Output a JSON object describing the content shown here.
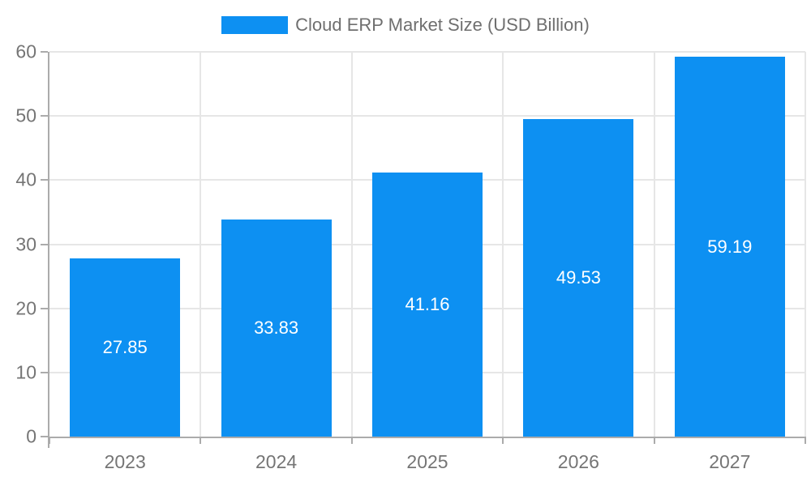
{
  "chart_data": {
    "type": "bar",
    "title": "Cloud ERP Market Size (USD Billion)",
    "categories": [
      "2023",
      "2024",
      "2025",
      "2026",
      "2027"
    ],
    "values": [
      27.85,
      33.83,
      41.16,
      49.53,
      59.19
    ],
    "value_labels": [
      "27.85",
      "33.83",
      "41.16",
      "49.53",
      "59.19"
    ],
    "xlabel": "",
    "ylabel": "",
    "ylim": [
      0,
      60
    ],
    "yticks": [
      0,
      10,
      20,
      30,
      40,
      50,
      60
    ],
    "grid": true,
    "legend_position": "top",
    "bar_width_fraction": 0.73
  },
  "legend": {
    "label": "Cloud ERP Market Size (USD Billion)"
  },
  "colors": {
    "bar": "#0d90f2",
    "bar_value_text": "#ffffff",
    "grid": "#e6e6e6",
    "axis": "#ababab",
    "tick_text": "#757575",
    "legend_text": "#6f6f6f",
    "background": "#ffffff"
  }
}
